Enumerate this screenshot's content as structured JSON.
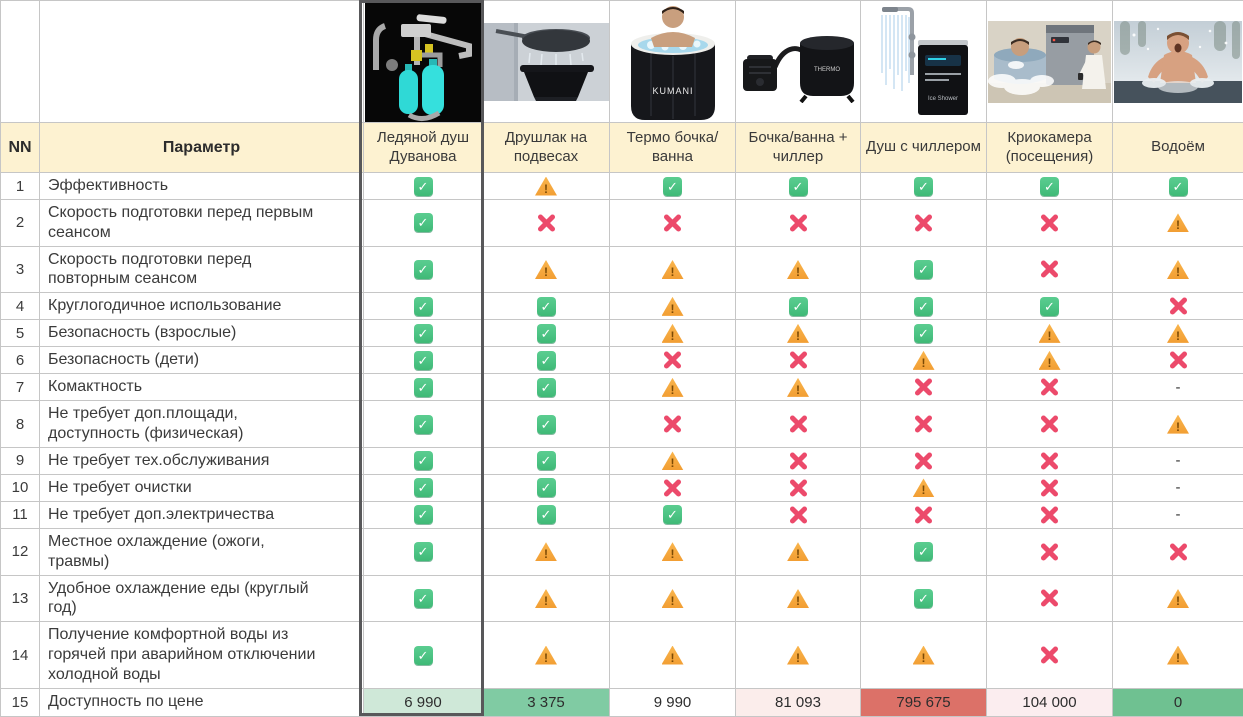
{
  "header": {
    "nn": "NN",
    "param_label": "Параметр"
  },
  "products": [
    {
      "key": "ledyanoy-dush-duvanova",
      "name": "Ледяной душ Дуванова",
      "selected": true,
      "price": "6 990",
      "price_bg": "#cfe8d8"
    },
    {
      "key": "drushlak-na-podvesah",
      "name": "Друшлак на подвесах",
      "selected": false,
      "price": "3 375",
      "price_bg": "#80cba3"
    },
    {
      "key": "termo-bochka-vanna",
      "name": "Термо бочка/ванна",
      "selected": false,
      "price": "9 990",
      "price_bg": "#ffffff"
    },
    {
      "key": "bochka-vanna-chiller",
      "name": "Бочка/ванна + чиллер",
      "selected": false,
      "price": "81 093",
      "price_bg": "#fbedeb"
    },
    {
      "key": "dush-s-chillerom",
      "name": "Душ с чиллером",
      "selected": false,
      "price": "795 675",
      "price_bg": "#dc7168"
    },
    {
      "key": "kriokamera-poseshcheniya",
      "name": "Криокамера (посещения)",
      "selected": false,
      "price": "104 000",
      "price_bg": "#fbedef"
    },
    {
      "key": "vodoyom",
      "name": "Водоём",
      "selected": false,
      "price": "0",
      "price_bg": "#6fc191"
    }
  ],
  "rows": [
    {
      "n": "1",
      "param": "Эффективность",
      "values": [
        "check",
        "warn",
        "check",
        "check",
        "check",
        "check",
        "check"
      ]
    },
    {
      "n": "2",
      "param": "Скорость подготовки перед первым сеансом",
      "values": [
        "check",
        "cross",
        "cross",
        "cross",
        "cross",
        "cross",
        "warn"
      ]
    },
    {
      "n": "3",
      "param": "Скорость подготовки перед повторным сеансом",
      "values": [
        "check",
        "warn",
        "warn",
        "warn",
        "check",
        "cross",
        "warn"
      ]
    },
    {
      "n": "4",
      "param": "Круглогодичное использование",
      "values": [
        "check",
        "check",
        "warn",
        "check",
        "check",
        "check",
        "cross"
      ]
    },
    {
      "n": "5",
      "param": "Безопасность (взрослые)",
      "values": [
        "check",
        "check",
        "warn",
        "warn",
        "check",
        "warn",
        "warn"
      ]
    },
    {
      "n": "6",
      "param": "Безопасность (дети)",
      "values": [
        "check",
        "check",
        "cross",
        "cross",
        "warn",
        "warn",
        "cross"
      ]
    },
    {
      "n": "7",
      "param": "Комактность",
      "values": [
        "check",
        "check",
        "warn",
        "warn",
        "cross",
        "cross",
        "dash"
      ]
    },
    {
      "n": "8",
      "param": "Не требует доп.площади, доступность (физическая)",
      "values": [
        "check",
        "check",
        "cross",
        "cross",
        "cross",
        "cross",
        "warn"
      ]
    },
    {
      "n": "9",
      "param": "Не требует тех.обслуживания",
      "values": [
        "check",
        "check",
        "warn",
        "cross",
        "cross",
        "cross",
        "dash"
      ]
    },
    {
      "n": "10",
      "param": "Не требует очистки",
      "values": [
        "check",
        "check",
        "cross",
        "cross",
        "warn",
        "cross",
        "dash"
      ]
    },
    {
      "n": "11",
      "param": "Не требует доп.электричества",
      "values": [
        "check",
        "check",
        "check",
        "cross",
        "cross",
        "cross",
        "dash"
      ]
    },
    {
      "n": "12",
      "param": "Местное охлаждение (ожоги, травмы)",
      "values": [
        "check",
        "warn",
        "warn",
        "warn",
        "check",
        "cross",
        "cross"
      ]
    },
    {
      "n": "13",
      "param": "Удобное охлаждение еды (круглый год)",
      "values": [
        "check",
        "warn",
        "warn",
        "warn",
        "check",
        "cross",
        "warn"
      ]
    },
    {
      "n": "14",
      "param": "Получение комфортной воды из горячей при аварийном отключении холодной воды",
      "values": [
        "check",
        "warn",
        "warn",
        "warn",
        "warn",
        "cross",
        "warn"
      ]
    },
    {
      "n": "15",
      "param": "Доступность по цене",
      "is_price": true
    }
  ],
  "icons": {
    "check": "green-check",
    "warn": "orange-warning",
    "cross": "pink-cross",
    "dash": "-"
  },
  "colors": {
    "header_bg": "#fdf2d1",
    "check_green": "#4cc384",
    "cross_pink": "#ec4a6b",
    "warn_orange_top": "#f9b54d",
    "warn_orange_bottom": "#f29e33",
    "grid_line": "#c6c6c6",
    "selection_border": "#58585a",
    "text": "#3b3b3b"
  }
}
